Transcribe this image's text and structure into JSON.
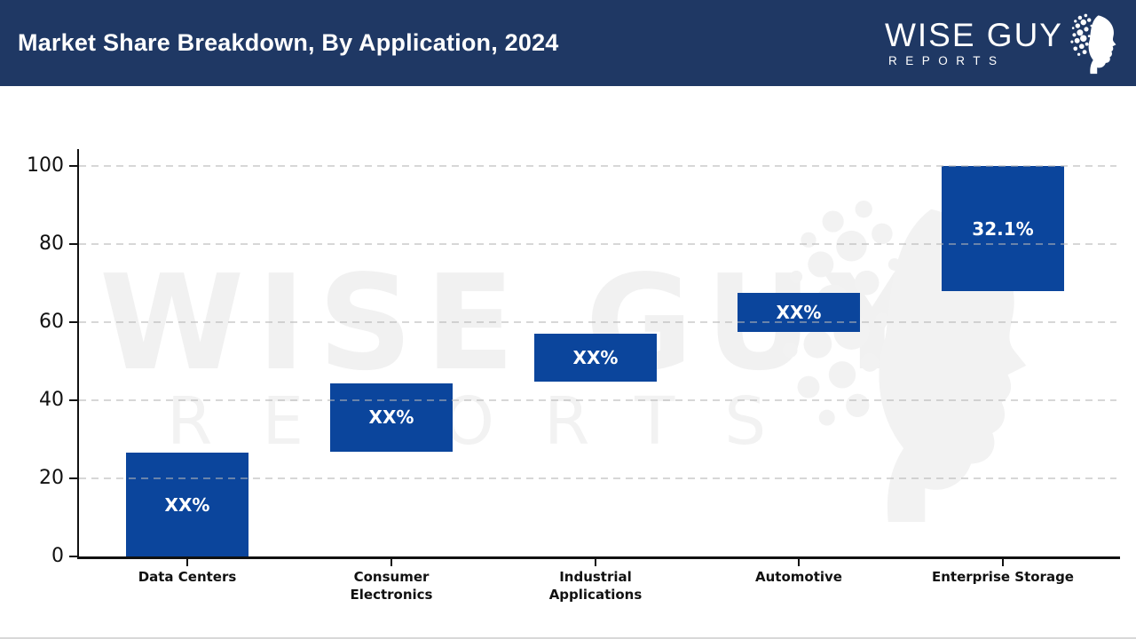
{
  "header": {
    "title": "Market Share Breakdown, By Application, 2024",
    "bg_color": "#1f3864",
    "logo_line1": "WISE GUY",
    "logo_line2": "REPORTS"
  },
  "watermark": {
    "line1": "WISE GUY",
    "line2": "REPORTS"
  },
  "chart_data": {
    "type": "bar",
    "variant": "floating-segment-waterfall",
    "title": "Market Share Breakdown, By Application, 2024",
    "xlabel": "",
    "ylabel": "",
    "ylim": [
      0,
      100
    ],
    "yticks": [
      0,
      20,
      40,
      60,
      80,
      100
    ],
    "grid": "horizontal-dashed",
    "bar_color": "#0b459c",
    "label_color": "#ffffff",
    "categories": [
      "Data Centers",
      "Consumer Electronics",
      "Industrial Applications",
      "Automotive",
      "Enterprise Storage"
    ],
    "segments": [
      {
        "category": "Data Centers",
        "start": 0,
        "end": 26.5,
        "size": 26.5,
        "label": "XX%"
      },
      {
        "category": "Consumer Electronics",
        "start": 26.8,
        "end": 44.4,
        "size": 17.6,
        "label": "XX%"
      },
      {
        "category": "Industrial Applications",
        "start": 44.7,
        "end": 57.0,
        "size": 12.3,
        "label": "XX%"
      },
      {
        "category": "Automotive",
        "start": 57.4,
        "end": 67.5,
        "size": 10.1,
        "label": "XX%"
      },
      {
        "category": "Enterprise Storage",
        "start": 67.9,
        "end": 100,
        "size": 32.1,
        "label": "32.1%"
      }
    ]
  }
}
